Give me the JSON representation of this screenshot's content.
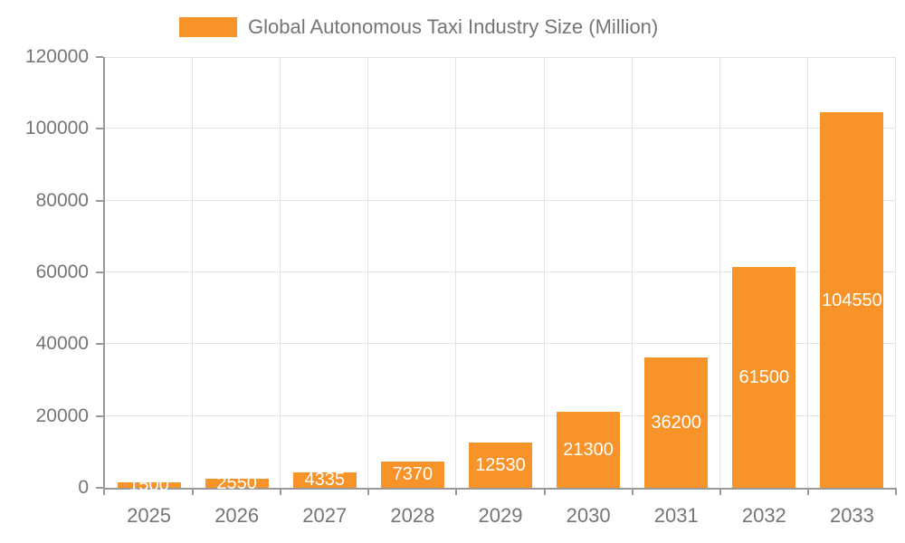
{
  "chart_data": {
    "type": "bar",
    "title": "Global Autonomous Taxi Industry Size (Million)",
    "legend": [
      "Global Autonomous Taxi Industry Size (Million)"
    ],
    "legend_position": "top",
    "categories": [
      "2025",
      "2026",
      "2027",
      "2028",
      "2029",
      "2030",
      "2031",
      "2032",
      "2033"
    ],
    "series": [
      {
        "name": "Global Autonomous Taxi Industry Size (Million)",
        "values": [
          1500,
          2550,
          4335,
          7370,
          12530,
          21300,
          36200,
          61500,
          104550
        ]
      }
    ],
    "bar_value_labels": [
      "1500",
      "2550",
      "4335",
      "7370",
      "12530",
      "21300",
      "36200",
      "61500",
      "104550"
    ],
    "xlabel": "",
    "ylabel": "",
    "ylim": [
      0,
      120000
    ],
    "yticks": [
      0,
      20000,
      40000,
      60000,
      80000,
      100000,
      120000
    ],
    "ytick_labels": [
      "0",
      "20000",
      "40000",
      "60000",
      "80000",
      "100000",
      "120000"
    ],
    "grid": true,
    "colors": {
      "bar": "#f79329",
      "bar_label": "#ffffff",
      "axis_text": "#757575",
      "axis_line": "#999999",
      "gridline": "#e4e4e4",
      "background": "#ffffff"
    }
  }
}
